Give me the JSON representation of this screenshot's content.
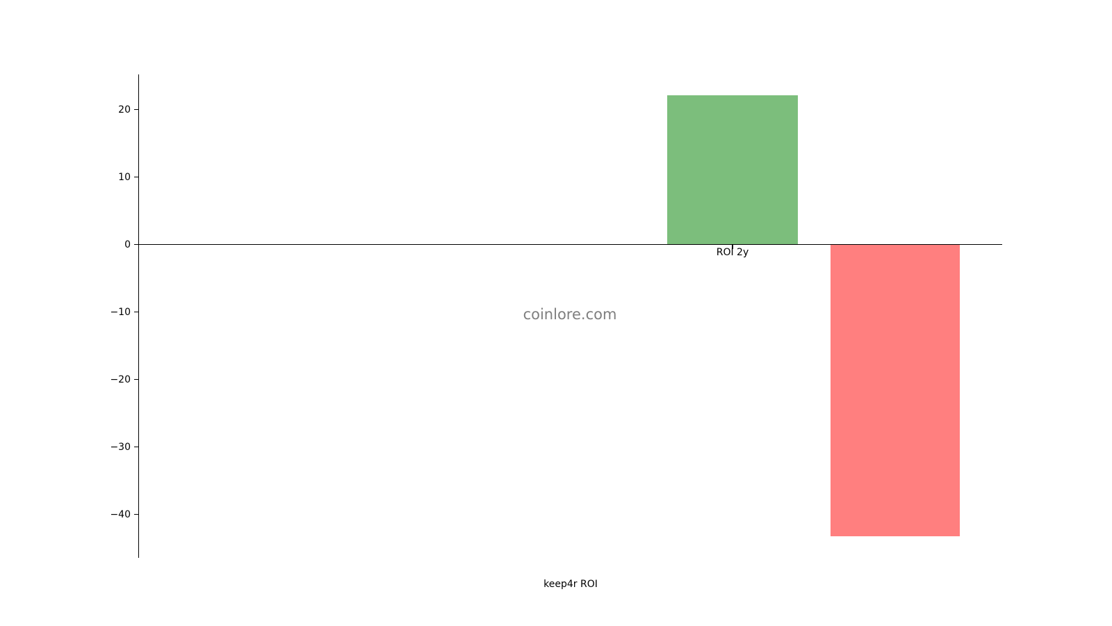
{
  "chart_data": {
    "type": "bar",
    "title": "",
    "xlabel": "keep4r ROI",
    "watermark": "coinlore.com",
    "bars": [
      {
        "name": "roi-2y-positive",
        "label": "ROI 2y",
        "value": 22.1,
        "color": "#7cbe7c"
      },
      {
        "name": "roi-negative",
        "label": "",
        "value": -43.2,
        "color": "#ff7f7f"
      }
    ],
    "yticks": [
      {
        "value": 20,
        "label": "20"
      },
      {
        "value": 10,
        "label": "10"
      },
      {
        "value": 0,
        "label": "0"
      },
      {
        "value": -10,
        "label": "−10"
      },
      {
        "value": -20,
        "label": "−20"
      },
      {
        "value": -30,
        "label": "−30"
      },
      {
        "value": -40,
        "label": "−40"
      }
    ],
    "ylim": [
      -46.5,
      25.4
    ],
    "grid": false,
    "legend": null,
    "colors": {
      "axis": "#000000",
      "tick_text": "#000000",
      "xlabel_text": "#000000",
      "watermark_text": "#7f7f7f",
      "background": "#ffffff"
    }
  }
}
